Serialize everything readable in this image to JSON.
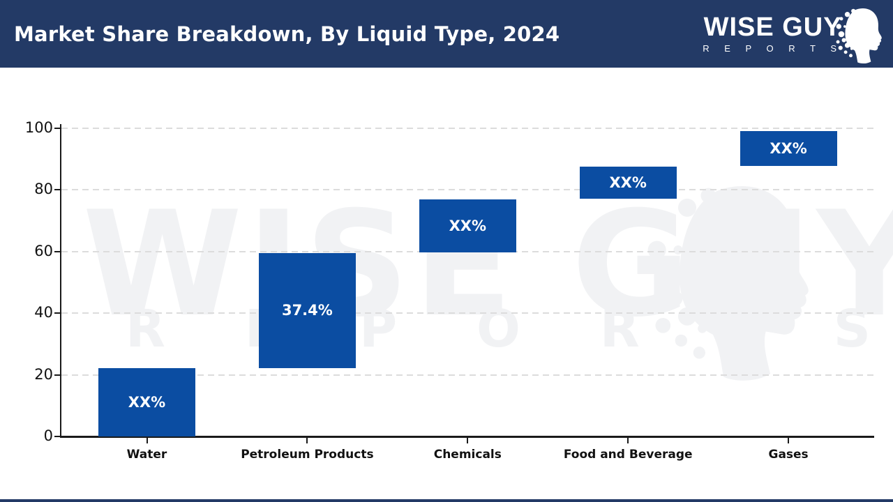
{
  "header": {
    "title": "Market Share Breakdown, By Liquid Type, 2024",
    "bg_color": "#233a66",
    "logo": {
      "line1": "WISE GUY",
      "line2": "R E P O R T S"
    }
  },
  "watermark": {
    "line1": "WISE GUY",
    "line2": "R E P O R T S"
  },
  "footer": {
    "bar_color": "#233a66"
  },
  "chart_data": {
    "type": "bar",
    "subtype": "waterfall",
    "title": "Market Share Breakdown, By Liquid Type, 2024",
    "categories": [
      "Water",
      "Petroleum Products",
      "Chemicals",
      "Food and Beverage",
      "Gases"
    ],
    "bars": [
      {
        "category": "Water",
        "start": 0,
        "end": 22.2,
        "label": "XX%"
      },
      {
        "category": "Petroleum Products",
        "start": 22.2,
        "end": 59.6,
        "label": "37.4%"
      },
      {
        "category": "Chemicals",
        "start": 59.8,
        "end": 77.0,
        "label": "XX%"
      },
      {
        "category": "Food and Beverage",
        "start": 77.2,
        "end": 87.6,
        "label": "XX%"
      },
      {
        "category": "Gases",
        "start": 87.8,
        "end": 99.2,
        "label": "XX%"
      }
    ],
    "ylim": [
      0,
      100
    ],
    "yticks": [
      0,
      20,
      40,
      60,
      80,
      100
    ],
    "xlabel": "",
    "ylabel": "",
    "bar_color": "#0b4da2",
    "bar_label_color": "#ffffff",
    "grid": {
      "horizontal": true,
      "style": "dashed",
      "color": "#dcdcdc"
    },
    "legend": "none"
  }
}
